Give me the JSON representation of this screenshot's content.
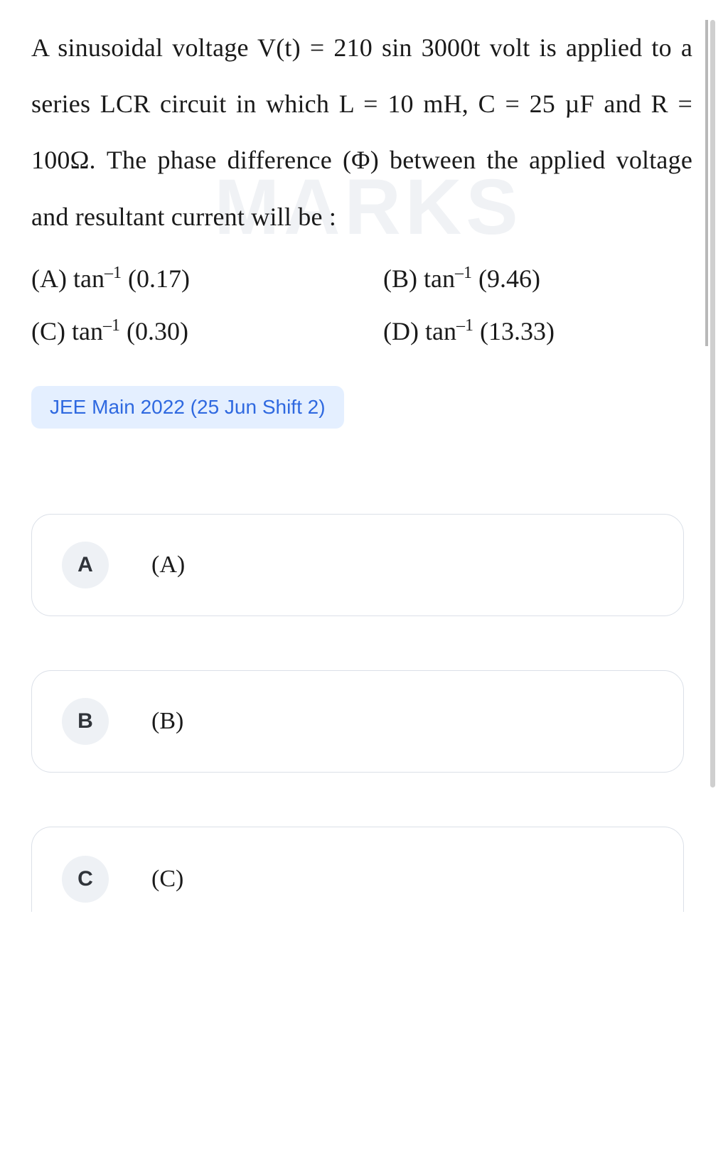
{
  "watermark": "MARKS",
  "question": {
    "text": "A sinusoidal voltage V(t) = 210 sin 3000t volt is applied to a series LCR circuit in which L = 10 mH, C = 25 µF and R = 100Ω. The phase difference (Φ) between the applied voltage and resultant current will be :"
  },
  "options": {
    "a": {
      "prefix": "(A) tan",
      "exp": "–1",
      "arg": " (0.17)"
    },
    "b": {
      "prefix": "(B) tan",
      "exp": "–1",
      "arg": " (9.46)"
    },
    "c": {
      "prefix": "(C) tan",
      "exp": "–1",
      "arg": " (0.30)"
    },
    "d": {
      "prefix": "(D) tan",
      "exp": "–1",
      "arg": " (13.33)"
    }
  },
  "tag": "JEE Main 2022 (25 Jun Shift 2)",
  "answers": {
    "a": {
      "chip": "A",
      "label": "(A)"
    },
    "b": {
      "chip": "B",
      "label": "(B)"
    },
    "c": {
      "chip": "C",
      "label": "(C)"
    }
  },
  "colors": {
    "tag_bg": "#e4efff",
    "tag_text": "#2f69e0",
    "chip_bg": "#eef1f5",
    "card_border": "#dbe0e8",
    "scroll": "#cfcfcf",
    "watermark": "#f0f2f5"
  }
}
